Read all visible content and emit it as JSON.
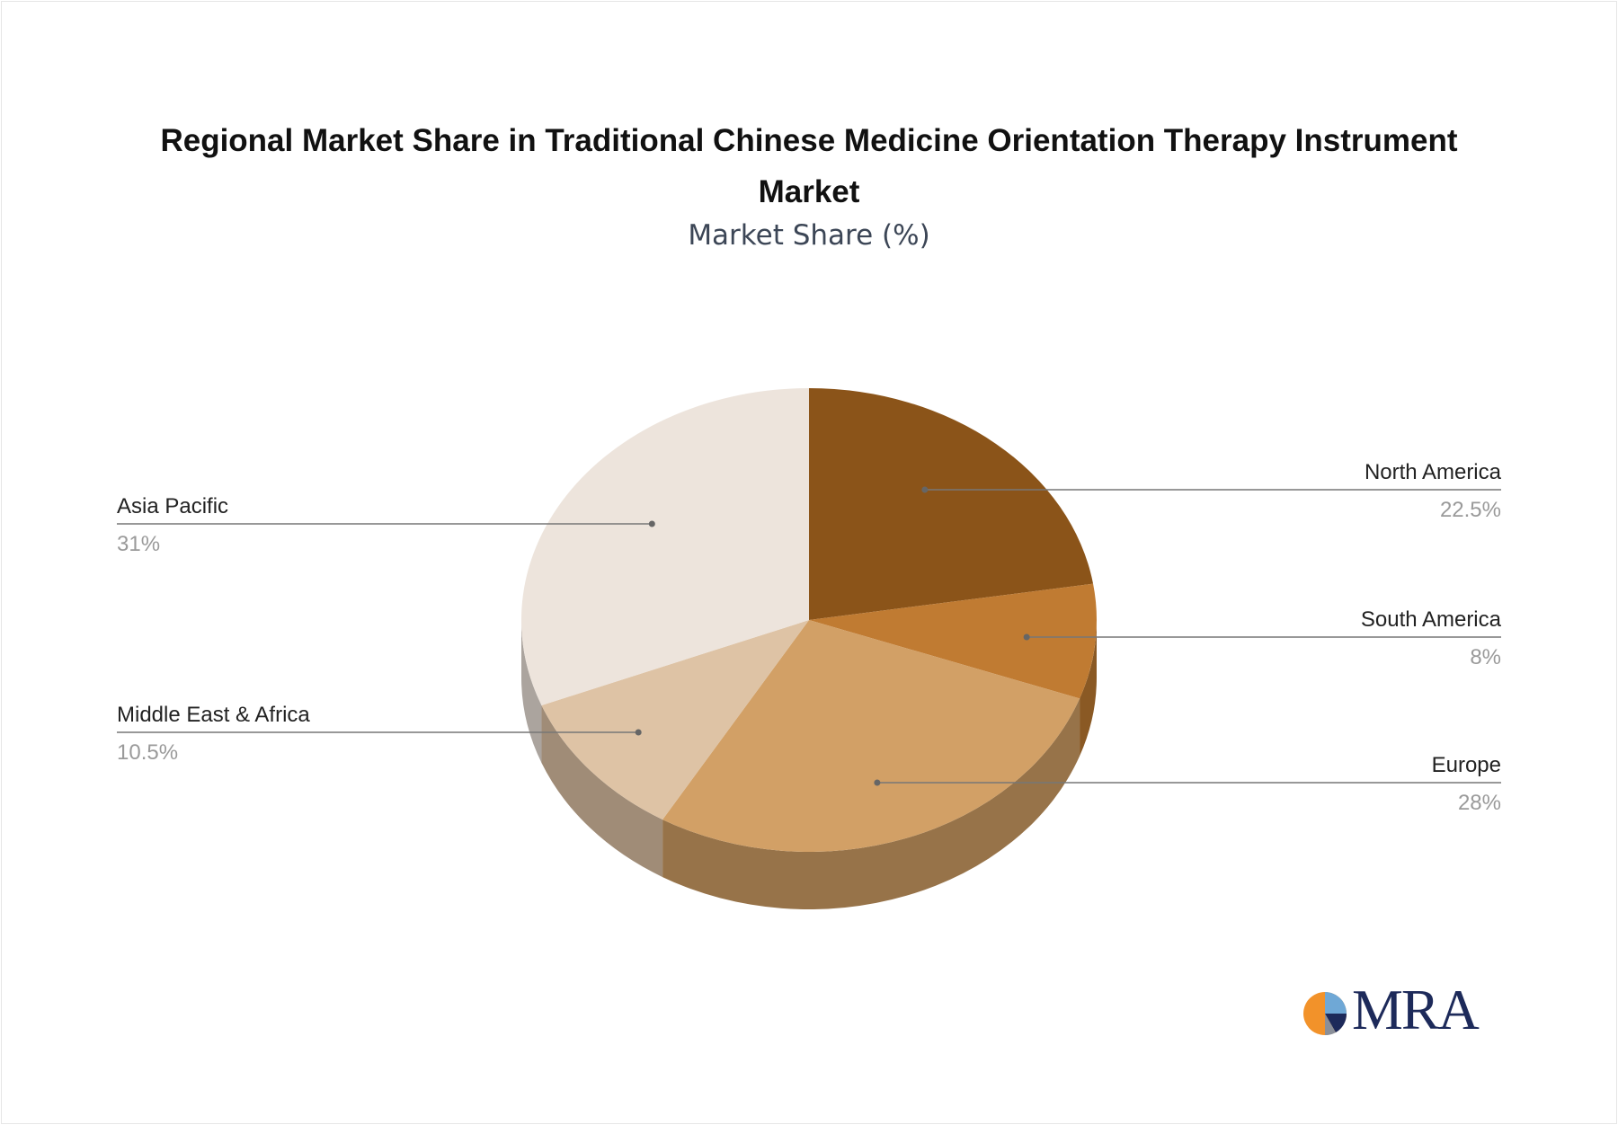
{
  "chart_data": {
    "type": "pie",
    "title": "Regional Market Share in Traditional Chinese Medicine Orientation Therapy Instrument Market",
    "subtitle": "Market Share (%)",
    "slices": [
      {
        "label": "North America",
        "value": 22.5,
        "display": "22.5%",
        "color": "#8b5419"
      },
      {
        "label": "South America",
        "value": 8,
        "display": "8%",
        "color": "#c07b32"
      },
      {
        "label": "Europe",
        "value": 28,
        "display": "28%",
        "color": "#d2a066"
      },
      {
        "label": "Middle East & Africa",
        "value": 10.5,
        "display": "10.5%",
        "color": "#dec3a5"
      },
      {
        "label": "Asia Pacific",
        "value": 31,
        "display": "31%",
        "color": "#ede4dc"
      }
    ]
  },
  "logo": {
    "text": "MRA"
  }
}
